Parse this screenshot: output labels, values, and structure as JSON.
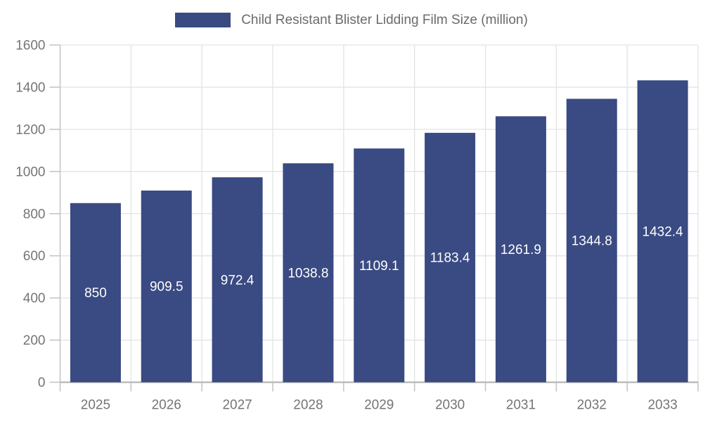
{
  "legend": {
    "label": "Child Resistant Blister Lidding Film Size (million)"
  },
  "chart_data": {
    "type": "bar",
    "title": "Child Resistant Blister Lidding Film Size (million)",
    "series_name": "Child Resistant Blister Lidding Film Size (million)",
    "categories": [
      "2025",
      "2026",
      "2027",
      "2028",
      "2029",
      "2030",
      "2031",
      "2032",
      "2033"
    ],
    "values": [
      850,
      909.5,
      972.4,
      1038.8,
      1109.1,
      1183.4,
      1261.9,
      1344.8,
      1432.4
    ],
    "value_labels": [
      "850",
      "909.5",
      "972.4",
      "1038.8",
      "1109.1",
      "1183.4",
      "1261.9",
      "1344.8",
      "1432.4"
    ],
    "xlabel": "",
    "ylabel": "",
    "ylim": [
      0,
      1600
    ],
    "yticks": [
      0,
      200,
      400,
      600,
      800,
      1000,
      1200,
      1400,
      1600
    ],
    "grid": true,
    "legend_position": "top-center",
    "value_label_position": "inside-center",
    "colors": {
      "bar": "#3A4A82",
      "bar_value_label": "#FFFFFF",
      "axis_line": "#ADADAD",
      "tick_line": "#C2C2C2",
      "grid_line": "#E3E3E3",
      "axis_text": "#757575",
      "legend_text": "#6B6B6B",
      "background": "#FFFFFF"
    }
  }
}
